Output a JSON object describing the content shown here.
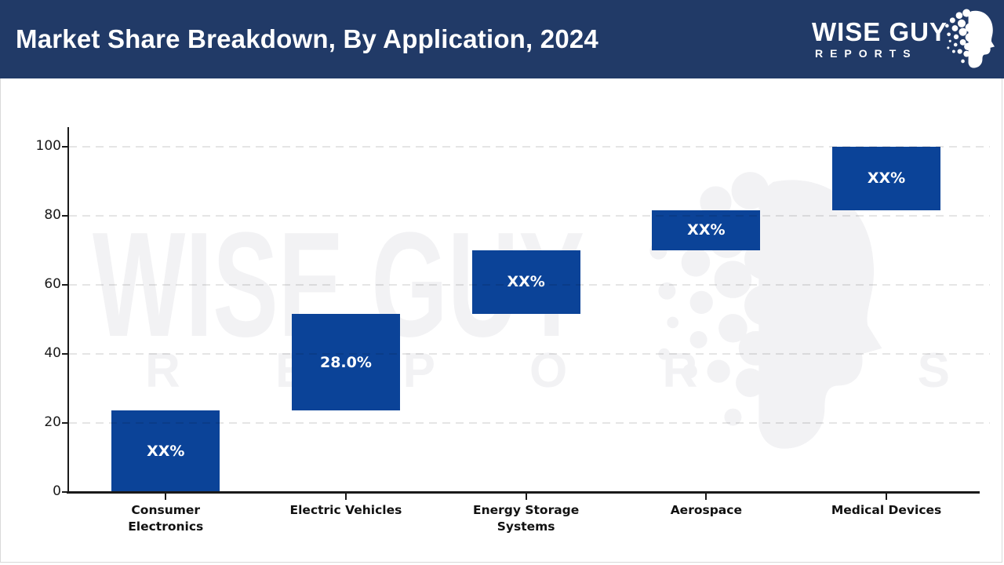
{
  "header": {
    "title": "Market Share Breakdown, By Application, 2024",
    "bg_color": "#213A67",
    "logo": {
      "line1": "WISE GUY",
      "line2": "REPORTS"
    }
  },
  "watermark": {
    "line1": "WISE GUY",
    "line2": "R E P O R T S",
    "color": "#f2f2f4"
  },
  "chart_data": {
    "type": "bar",
    "subtype": "waterfall",
    "title": "Market Share Breakdown, By Application, 2024",
    "categories": [
      "Consumer Electronics",
      "Electric Vehicles",
      "Energy Storage Systems",
      "Aerospace",
      "Medical Devices"
    ],
    "categories_display": [
      "Consumer\nElectronics",
      "Electric Vehicles",
      "Energy Storage\nSystems",
      "Aerospace",
      "Medical Devices"
    ],
    "segments": [
      {
        "category": "Consumer Electronics",
        "start": 0,
        "end": 23.5,
        "label": "XX%"
      },
      {
        "category": "Electric Vehicles",
        "start": 23.5,
        "end": 51.5,
        "label": "28.0%",
        "value": 28.0
      },
      {
        "category": "Energy Storage Systems",
        "start": 51.5,
        "end": 70.0,
        "label": "XX%"
      },
      {
        "category": "Aerospace",
        "start": 70.0,
        "end": 81.5,
        "label": "XX%"
      },
      {
        "category": "Medical Devices",
        "start": 81.5,
        "end": 100.0,
        "label": "XX%"
      }
    ],
    "yticks": [
      0,
      20,
      40,
      60,
      80,
      100
    ],
    "ylim": [
      0,
      105.5
    ],
    "xlabel": "",
    "ylabel": "",
    "bar_color": "#0B4398",
    "grid": "horizontal-dashed-overlay",
    "legend": "none"
  }
}
